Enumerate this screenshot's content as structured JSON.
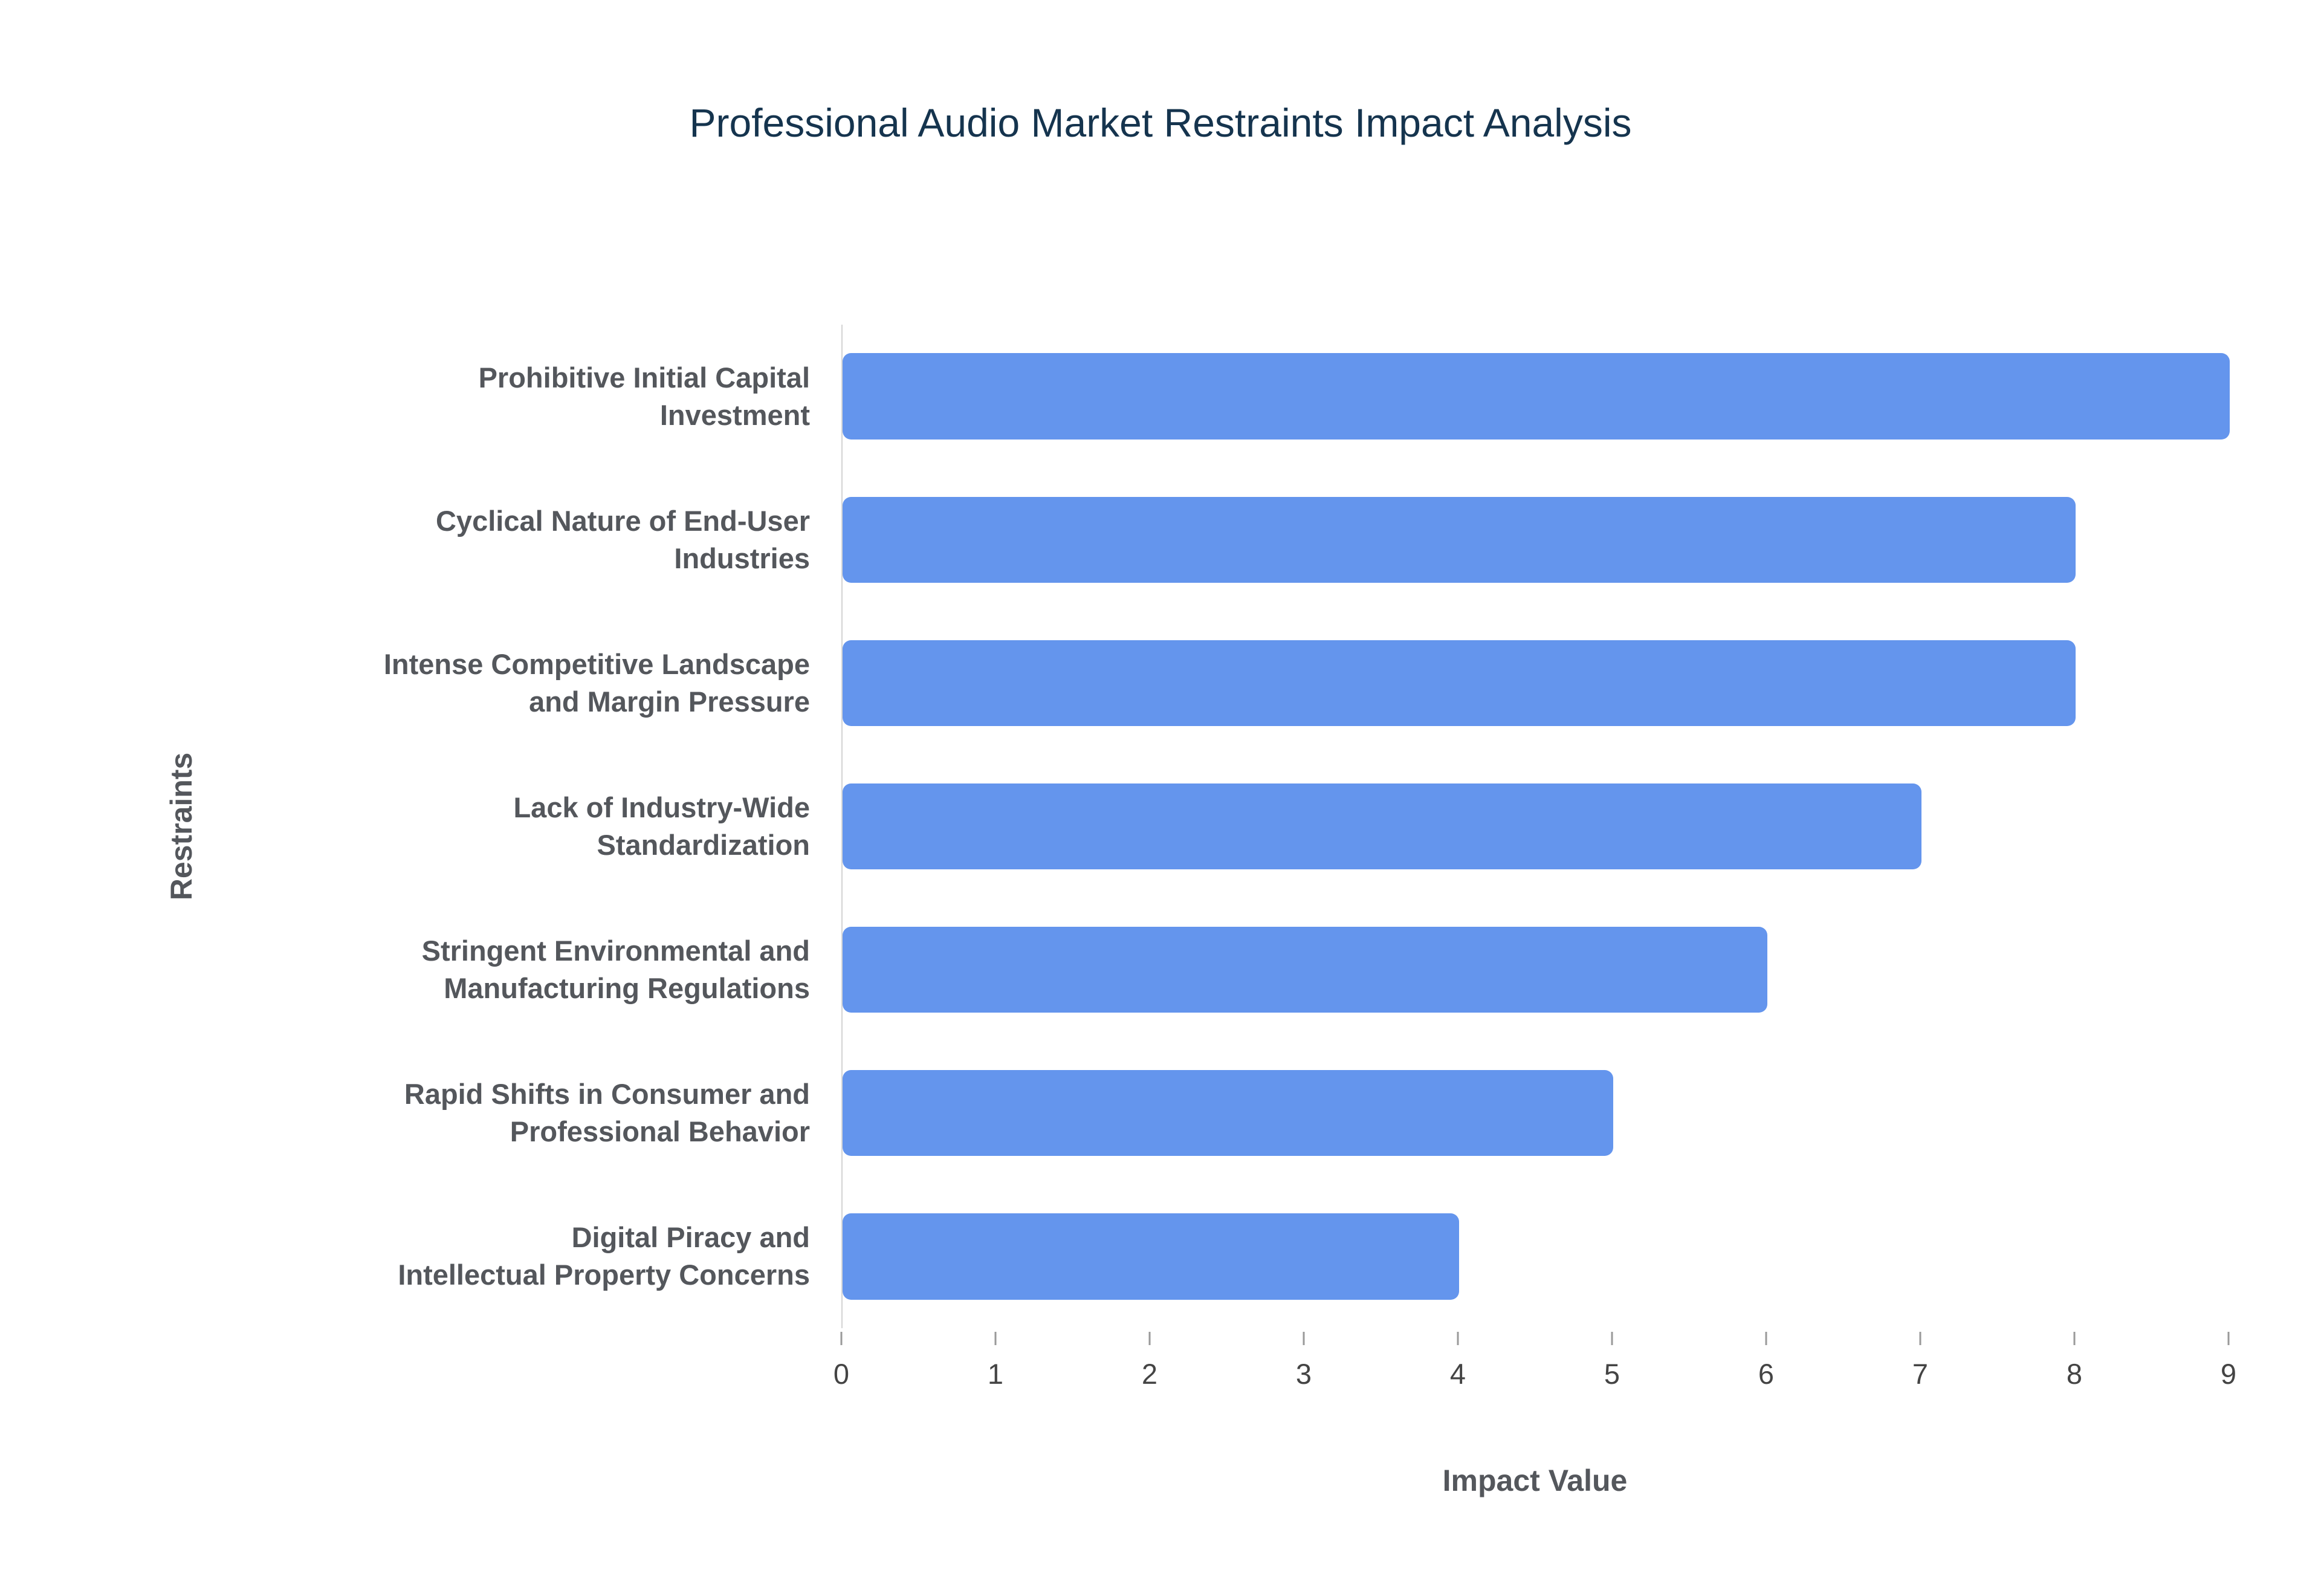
{
  "chart_data": {
    "type": "bar",
    "orientation": "horizontal",
    "title": "Professional Audio Market Restraints Impact Analysis",
    "xlabel": "Impact Value",
    "ylabel": "Restraints",
    "categories": [
      "Prohibitive Initial Capital\nInvestment",
      "Cyclical Nature of End-User\nIndustries",
      "Intense Competitive Landscape\nand Margin Pressure",
      "Lack of Industry-Wide\nStandardization",
      "Stringent Environmental and\nManufacturing Regulations",
      "Rapid Shifts in Consumer and\nProfessional Behavior",
      "Digital Piracy and\nIntellectual Property Concerns"
    ],
    "values": [
      9,
      8,
      8,
      7,
      6,
      5,
      4
    ],
    "xlim": [
      0,
      9
    ],
    "xticks": [
      0,
      1,
      2,
      3,
      4,
      5,
      6,
      7,
      8,
      9
    ],
    "grid": false,
    "legend": "none",
    "colors": {
      "bar": "#6495ed",
      "title": "#15344e",
      "axis_label": "#54575c",
      "tick_label": "#444444",
      "axis_line": "#d4d4d4"
    }
  }
}
